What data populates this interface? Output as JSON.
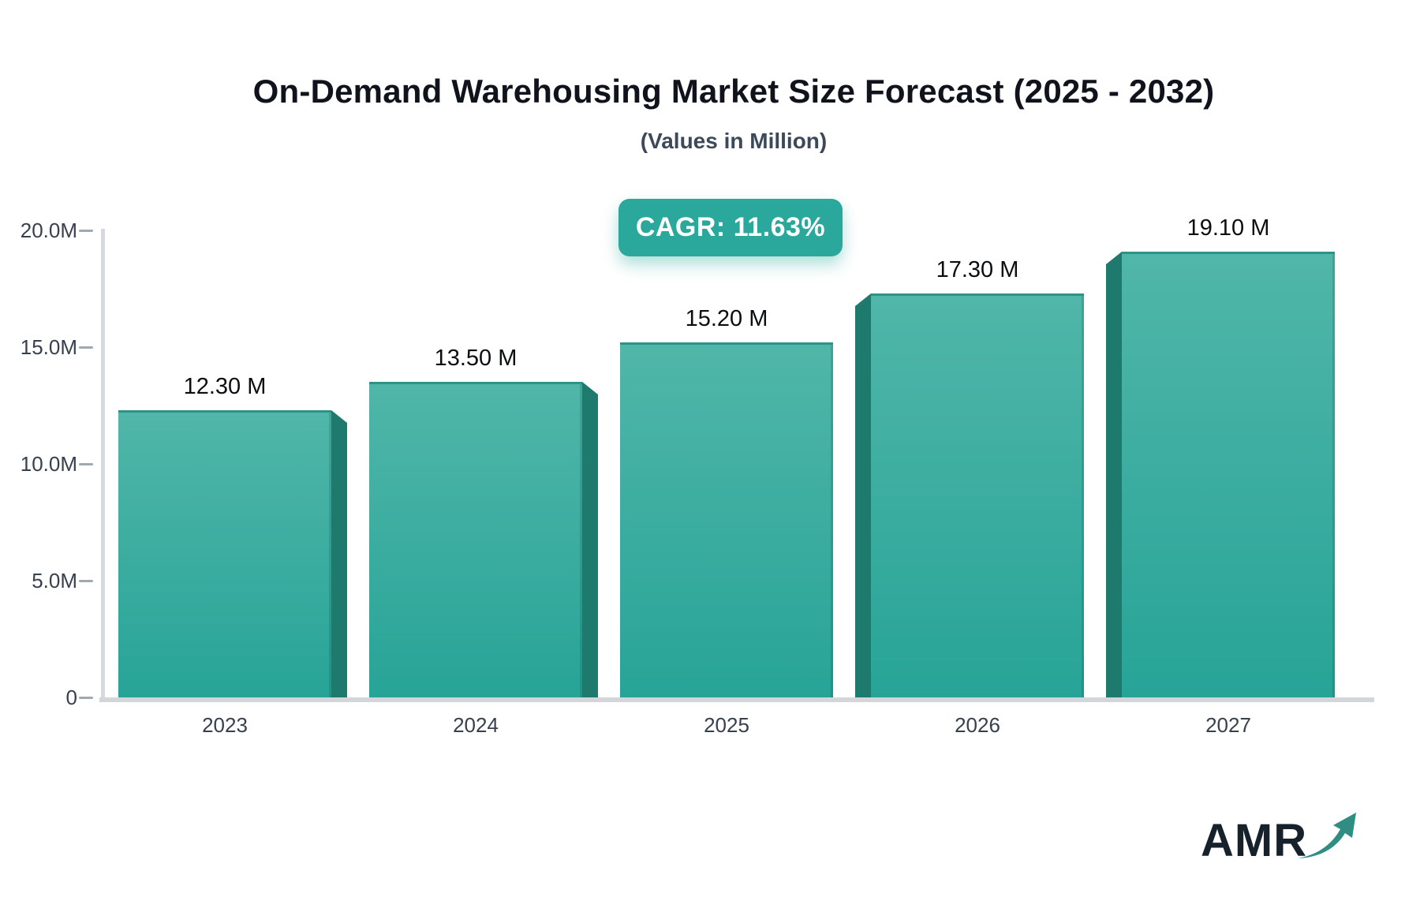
{
  "header": {
    "title": "On-Demand Warehousing Market Size Forecast (2025 - 2032)",
    "subtitle": "(Values in Million)"
  },
  "badge": {
    "label": "CAGR: 11.63%",
    "bg": "#2aa89b"
  },
  "logo": {
    "text": "AMR",
    "arrow_color": "#2f8d83",
    "text_color": "#16212c"
  },
  "chart_data": {
    "type": "bar",
    "title": "On-Demand Warehousing Market Size Forecast (2025 - 2032)",
    "subtitle": "(Values in Million)",
    "cagr_label": "CAGR: 11.63%",
    "categories": [
      "2023",
      "2024",
      "2025",
      "2026",
      "2027"
    ],
    "values": [
      12.3,
      13.5,
      15.2,
      17.3,
      19.1
    ],
    "value_labels": [
      "12.30 M",
      "13.50 M",
      "15.20 M",
      "17.30 M",
      "19.10 M"
    ],
    "extrude_side": [
      "right",
      "right",
      "none",
      "left",
      "left"
    ],
    "xlabel": "",
    "ylabel": "",
    "ylim": [
      0,
      20
    ],
    "ytick_labels": [
      "20.0M",
      "15.0M",
      "10.0M",
      "5.0M",
      "0"
    ],
    "ytick_values": [
      20,
      15,
      10,
      5,
      0
    ],
    "grid": false,
    "legend": false,
    "colors": {
      "bar_top": "#50b6a9",
      "bar_bottom": "#27a497",
      "bar_side": "#1f7a6e",
      "bar_edge": "#2d9387",
      "axis_line": "#d4d8dc",
      "tick_dash": "#a0a8b1",
      "tick_text": "#36404f",
      "value_text": "#0b0e11",
      "badge_bg": "#2aa89b"
    }
  }
}
